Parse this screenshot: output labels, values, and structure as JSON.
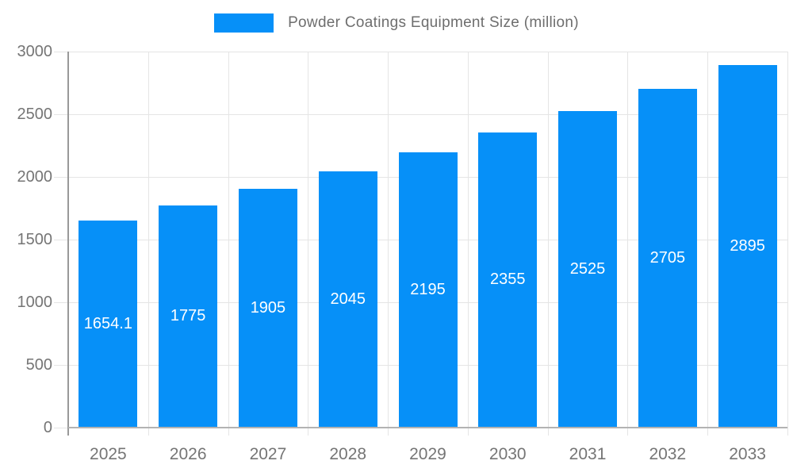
{
  "legend": {
    "label": "Powder Coatings Equipment Size (million)"
  },
  "colors": {
    "bar": "#0690f8",
    "bar_label": "#ffffff",
    "grid": "#e5e5e5",
    "axis_line": "#999999",
    "baseline": "#b3b3b3",
    "tick_label": "#757575",
    "legend_text": "#6e6e6e",
    "background": "#ffffff"
  },
  "chart_data": {
    "type": "bar",
    "title": "Powder Coatings Equipment Size (million)",
    "categories": [
      "2025",
      "2026",
      "2027",
      "2028",
      "2029",
      "2030",
      "2031",
      "2032",
      "2033"
    ],
    "values": [
      1654.1,
      1775,
      1905,
      2045,
      2195,
      2355,
      2525,
      2705,
      2895
    ],
    "value_labels": [
      "1654.1",
      "1775",
      "1905",
      "2045",
      "2195",
      "2355",
      "2525",
      "2705",
      "2895"
    ],
    "xlabel": "",
    "ylabel": "",
    "ylim": [
      0,
      3000
    ],
    "yticks": [
      0,
      500,
      1000,
      1500,
      2000,
      2500,
      3000
    ],
    "grid": true,
    "legend_position": "top-center",
    "value_label_position": "center-inside"
  }
}
